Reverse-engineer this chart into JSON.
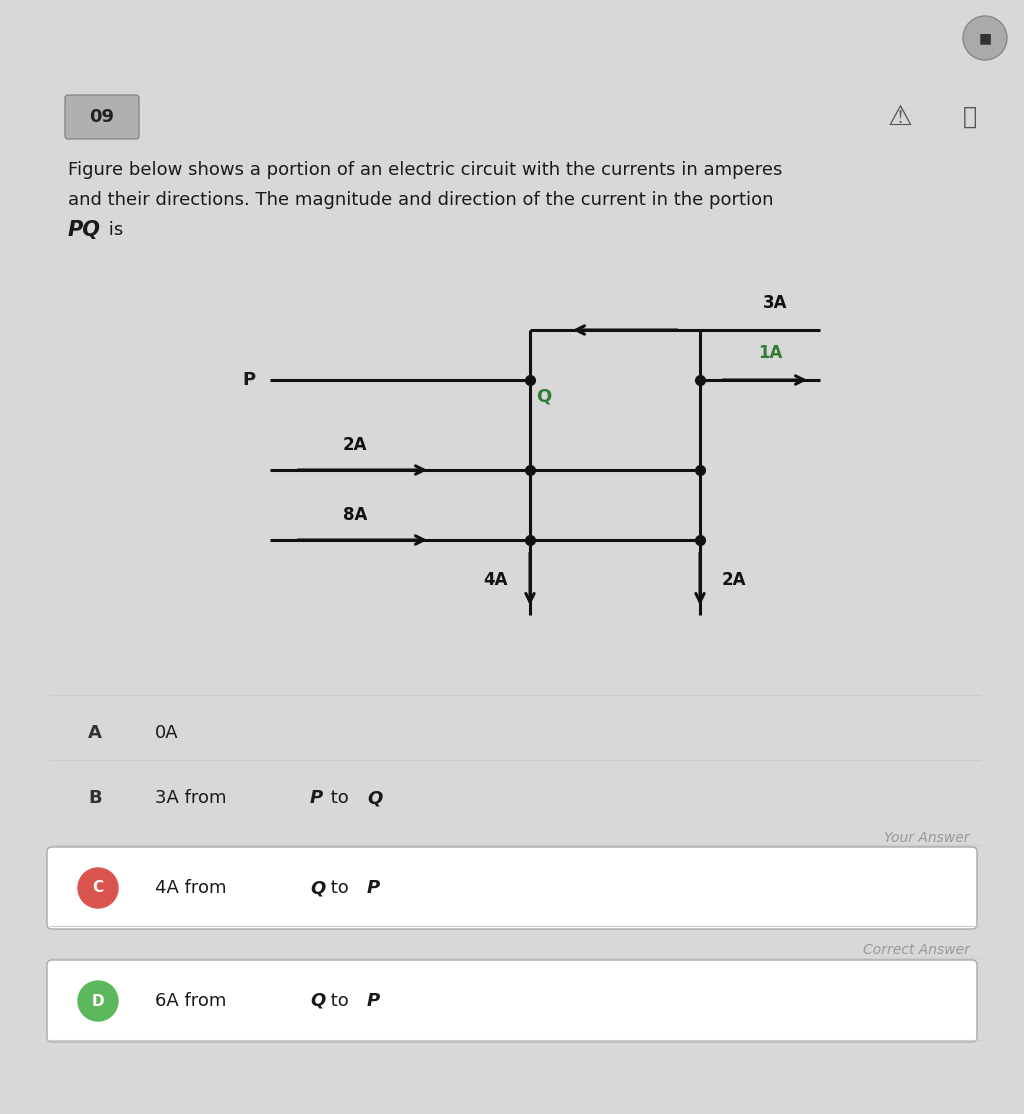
{
  "bg_color": "#d8d8d8",
  "question_number": "09",
  "question_text_line1": "Figure below shows a portion of an electric circuit with the currents in amperes",
  "question_text_line2": "and their directions. The magnitude and direction of the current in the portion",
  "question_text_line3_italic": "PQ",
  "question_text_line3_normal": " is",
  "line_color": "#111111",
  "label_color_green": "#2e7d32",
  "label_color_black": "#111111",
  "lw": 2.2
}
